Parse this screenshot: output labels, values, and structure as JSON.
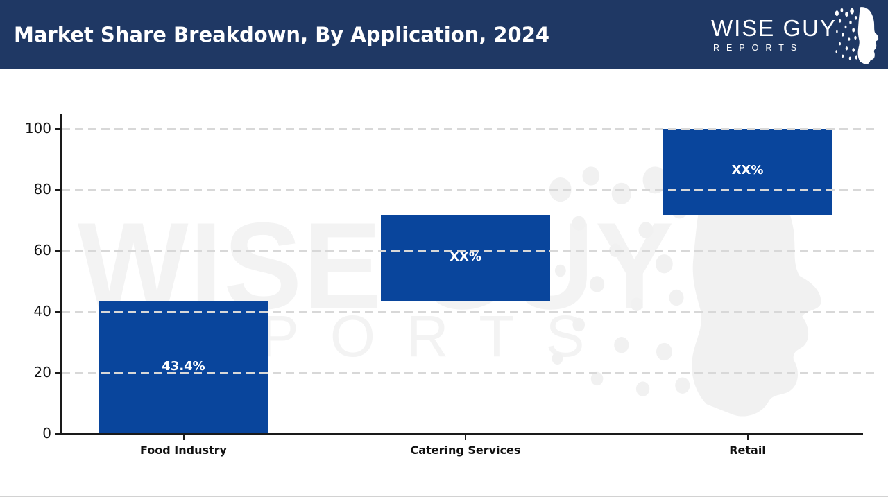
{
  "header": {
    "title": "Market Share Breakdown, By Application, 2024",
    "logo": {
      "line1": "WISE GUY",
      "line2": "REPORTS"
    }
  },
  "watermark": {
    "line1": "WISE GUY",
    "line2": "REPORTS"
  },
  "chart_data": {
    "type": "bar",
    "subtype": "floating-waterfall",
    "title": "Market Share Breakdown, By Application, 2024",
    "categories": [
      "Food Industry",
      "Catering Services",
      "Retail"
    ],
    "bars": [
      {
        "category": "Food Industry",
        "start": 0,
        "end": 43.4,
        "label": "43.4%"
      },
      {
        "category": "Catering Services",
        "start": 43.4,
        "end": 71.8,
        "label": "XX%"
      },
      {
        "category": "Retail",
        "start": 71.8,
        "end": 100,
        "label": "XX%"
      }
    ],
    "yticks": [
      0,
      20,
      40,
      60,
      80,
      100
    ],
    "ylim": [
      0,
      100
    ],
    "grid": "horizontal dashed, drawn over bars",
    "legend": "none"
  },
  "colors": {
    "header_bg": "#1f3864",
    "bar": "#09459c",
    "bar_label": "#ffffff",
    "grid": "#d8d8d8",
    "axis": "#1a1a1a",
    "watermark": "#f3f3f3",
    "bottom_line": "#d2d2d2"
  }
}
